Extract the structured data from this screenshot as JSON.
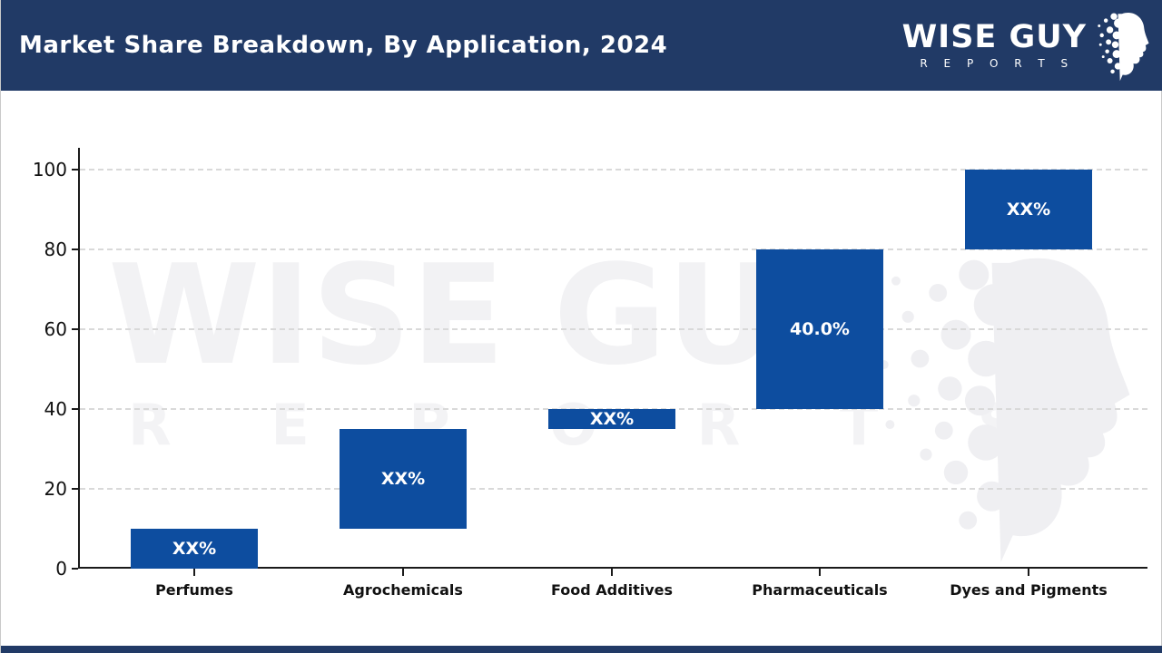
{
  "header": {
    "title": "Market Share Breakdown, By Application, 2024",
    "logo": {
      "line1": "WISE GUY",
      "line2": "R E P O R T S"
    }
  },
  "watermark": {
    "line1": "WISE GUY",
    "line2": "R E P O R T S"
  },
  "colors": {
    "header_bg": "#213a66",
    "bar": "#0d4d9f",
    "bar_label": "#ffffff",
    "grid": "#d9d9d9",
    "axis": "#1a1a1a",
    "watermark": "#f2f2f4"
  },
  "chart_data": {
    "type": "bar",
    "subtype": "waterfall",
    "title": "Market Share Breakdown, By Application, 2024",
    "categories": [
      "Perfumes",
      "Agrochemicals",
      "Food Additives",
      "Pharmaceuticals",
      "Dyes and Pigments"
    ],
    "segments": [
      {
        "category": "Perfumes",
        "start": 0,
        "end": 10,
        "label": "XX%"
      },
      {
        "category": "Agrochemicals",
        "start": 10,
        "end": 35,
        "label": "XX%"
      },
      {
        "category": "Food Additives",
        "start": 35,
        "end": 40,
        "label": "XX%"
      },
      {
        "category": "Pharmaceuticals",
        "start": 40,
        "end": 80,
        "label": "40.0%"
      },
      {
        "category": "Dyes and Pigments",
        "start": 80,
        "end": 100,
        "label": "XX%"
      }
    ],
    "xlabel": "",
    "ylabel": "",
    "ylim": [
      0,
      100
    ],
    "yticks": [
      0,
      20,
      40,
      60,
      80,
      100
    ],
    "grid": "horizontal-dashed",
    "legend": "none",
    "bar_color": "#0d4d9f"
  }
}
